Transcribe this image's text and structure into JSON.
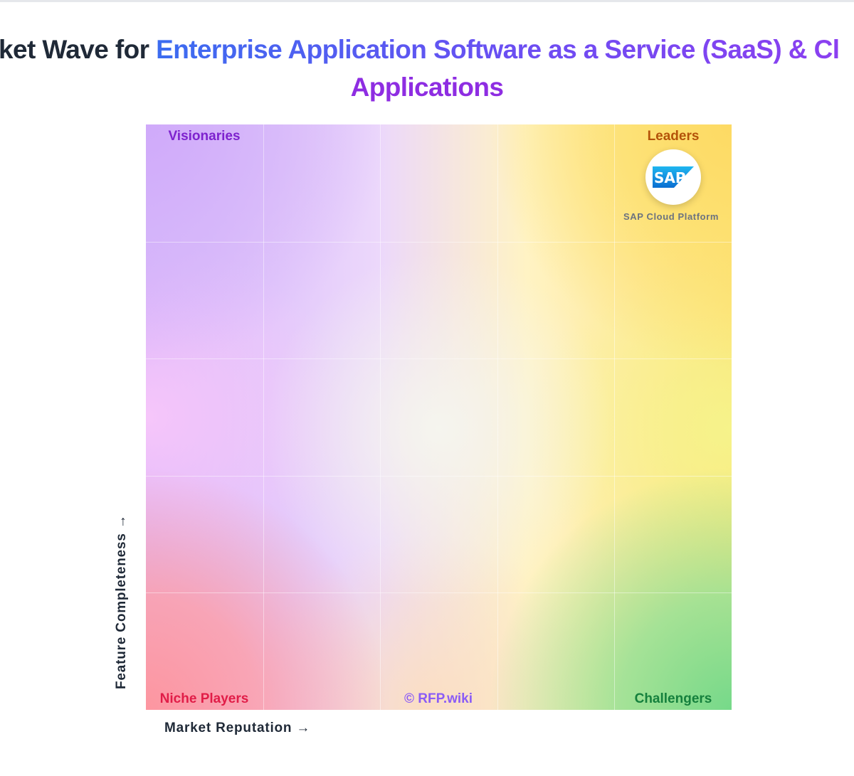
{
  "title": {
    "prefix": "ket Wave for ",
    "highlight_line1": "Enterprise Application Software as a Service (SaaS) & Cl",
    "highlight_line2": "Applications"
  },
  "chart_data": {
    "type": "scatter",
    "title": "ket Wave for Enterprise Application Software as a Service (SaaS) & Cl Applications",
    "xlabel": "Market Reputation →",
    "ylabel": "Feature Completeness →",
    "xlim": [
      0,
      5
    ],
    "ylim": [
      0,
      5
    ],
    "grid": true,
    "quadrants": {
      "top_left": "Visionaries",
      "top_right": "Leaders",
      "bottom_left": "Niche Players",
      "bottom_right": "Challengers"
    },
    "points": [
      {
        "name": "SAP Cloud Platform",
        "logo_text": "SAP",
        "x": 4.5,
        "y": 4.55
      }
    ],
    "watermark": "© RFP.wiki"
  },
  "colors": {
    "visionaries": "#7e22ce",
    "leaders": "#b45309",
    "niche_players": "#e11d48",
    "challengers": "#15803d",
    "sap_blue": "#1a73e8"
  }
}
